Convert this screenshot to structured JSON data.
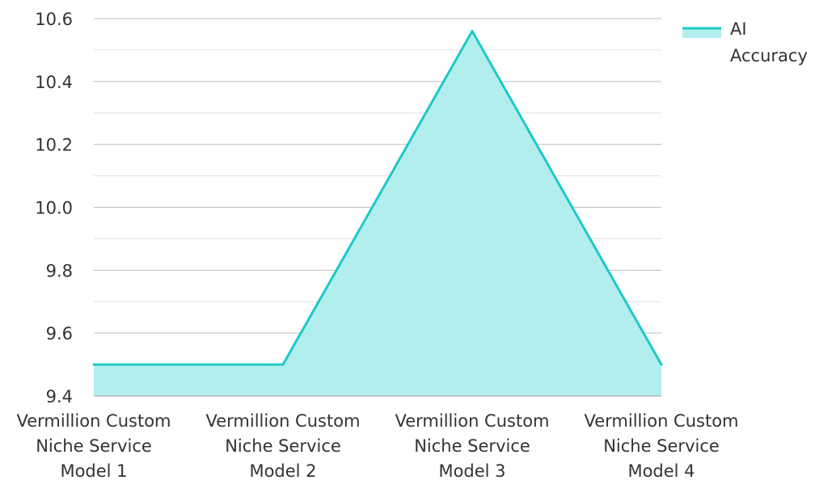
{
  "chart_data": {
    "type": "area",
    "categories": [
      [
        "Vermillion Custom",
        "Niche Service",
        "Model 1"
      ],
      [
        "Vermillion Custom",
        "Niche Service",
        "Model 2"
      ],
      [
        "Vermillion Custom",
        "Niche Service",
        "Model 3"
      ],
      [
        "Vermillion Custom",
        "Niche Service",
        "Model 4"
      ]
    ],
    "series": [
      {
        "name": "AI Accuracy",
        "values": [
          9.5,
          9.5,
          10.56,
          9.5
        ],
        "line_color": "#1cc9c6",
        "fill_color": "#b3eeee"
      }
    ],
    "ylim": [
      9.4,
      10.6
    ],
    "y_ticks": [
      "9.4",
      "9.6",
      "9.8",
      "10.0",
      "10.2",
      "10.4",
      "10.6"
    ],
    "grid": true,
    "legend": {
      "position": "top-right",
      "lines": [
        "AI",
        "Accuracy"
      ]
    },
    "colors": {
      "major_grid": "#bdbdbd",
      "minor_grid": "#e0e0e0",
      "axis_line": "#9e9e9e"
    }
  }
}
